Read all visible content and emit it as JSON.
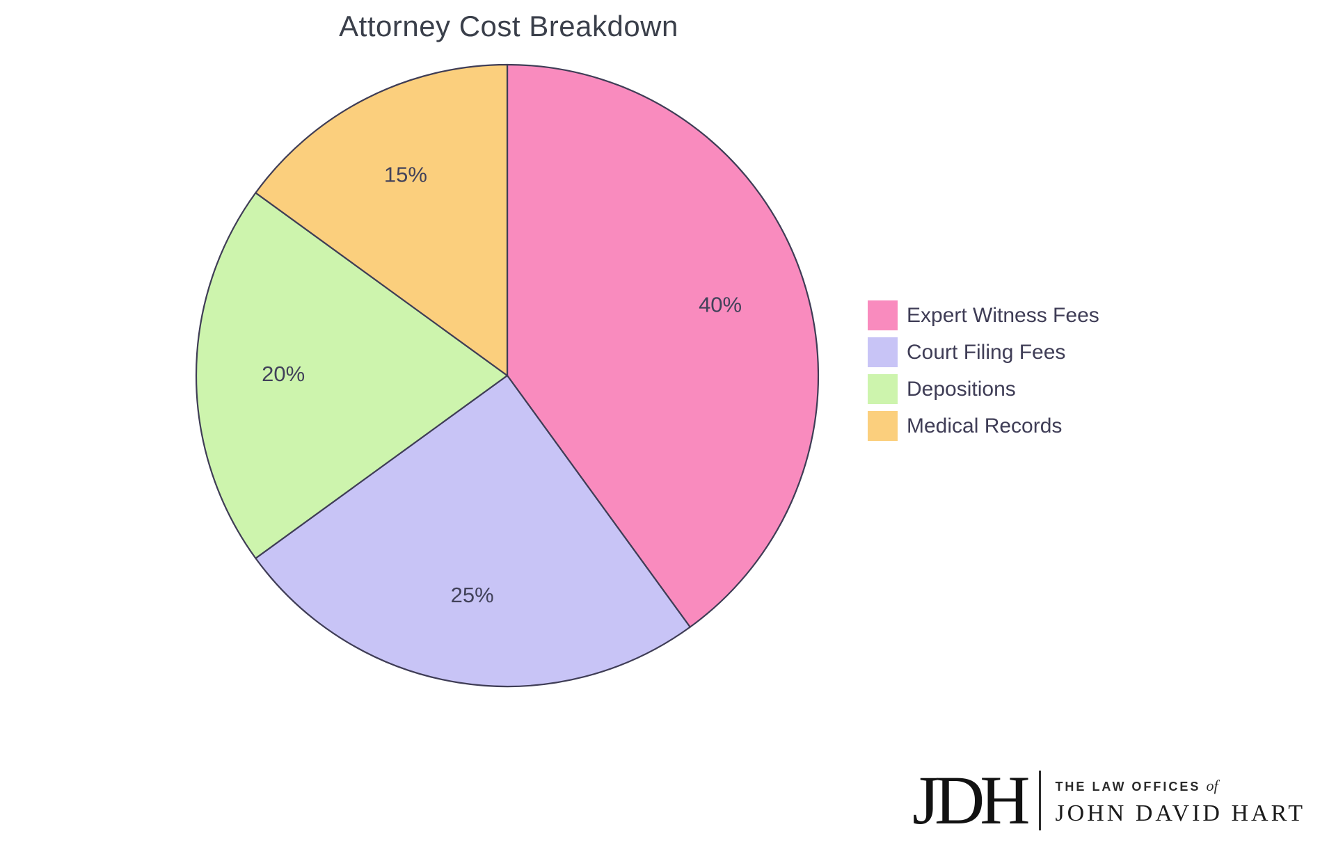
{
  "chart_data": {
    "type": "pie",
    "title": "Attorney Cost Breakdown",
    "labels": [
      "Expert Witness Fees",
      "Court Filing Fees",
      "Depositions",
      "Medical Records"
    ],
    "values": [
      40,
      25,
      20,
      15
    ],
    "value_labels": [
      "40%",
      "25%",
      "20%",
      "15%"
    ],
    "colors": [
      "#F98BBE",
      "#C8C4F6",
      "#CDF4AD",
      "#FBCF7D"
    ],
    "slice_border_color": "#3F3D56",
    "label_color": "#42425a",
    "start_angle_deg": -90,
    "direction": "clockwise",
    "legend_position": "right",
    "grid": false
  },
  "branding": {
    "monogram": "JDH",
    "tagline_prefix": "THE LAW OFFICES",
    "tagline_of": "of",
    "firm_name": "JOHN DAVID HART"
  }
}
